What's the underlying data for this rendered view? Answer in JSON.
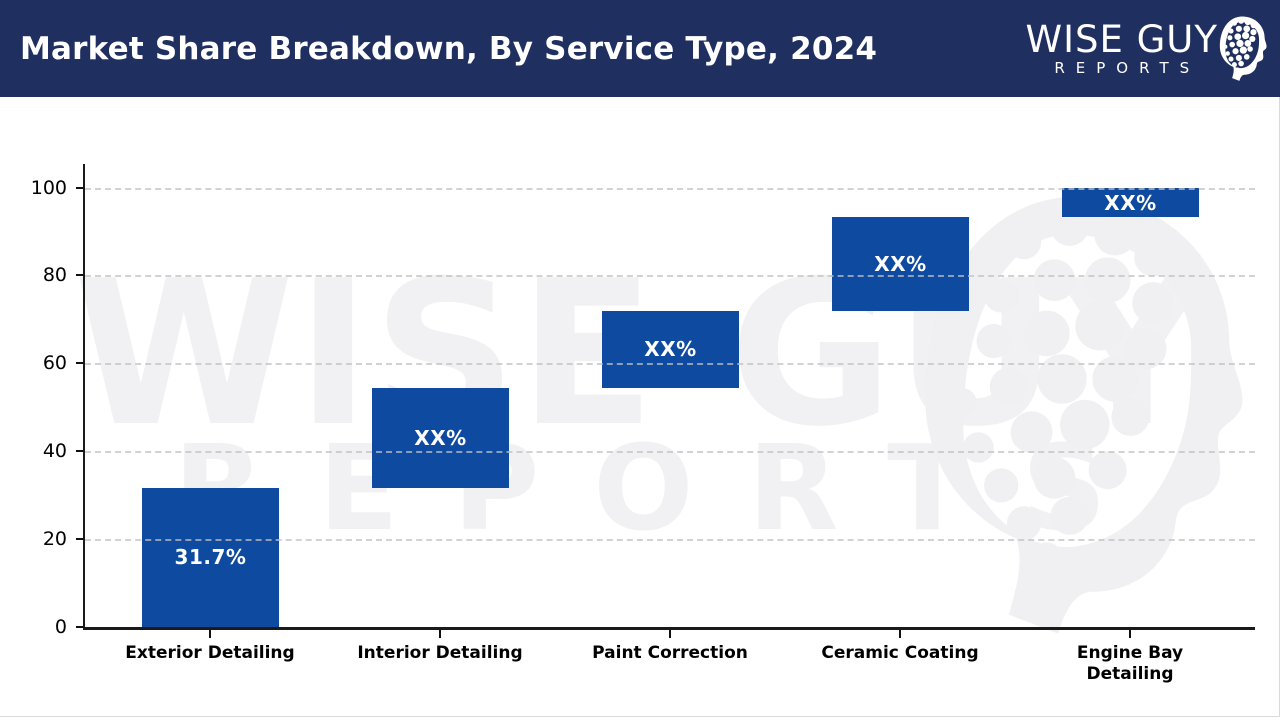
{
  "header": {
    "title": "Market Share Breakdown, By Service Type, 2024",
    "bg_color": "#1f2f5f",
    "logo": {
      "line1": "WISE GUY",
      "line2": "REPORTS"
    }
  },
  "watermark": {
    "line1": "WISE GUY",
    "line2": "REPORTS"
  },
  "chart_data": {
    "type": "bar",
    "subtype": "waterfall",
    "title": "Market Share Breakdown, By Service Type, 2024",
    "categories": [
      "Exterior Detailing",
      "Interior Detailing",
      "Paint Correction",
      "Ceramic Coating",
      "Engine Bay Detailing"
    ],
    "segments": [
      {
        "category": "Exterior Detailing",
        "label_lines": [
          "Exterior Detailing"
        ],
        "start": 0,
        "end": 31.7,
        "value_label": "31.7%"
      },
      {
        "category": "Interior Detailing",
        "label_lines": [
          "Interior Detailing"
        ],
        "start": 31.7,
        "end": 54.3,
        "value_label": "XX%"
      },
      {
        "category": "Paint Correction",
        "label_lines": [
          "Paint Correction"
        ],
        "start": 54.3,
        "end": 72,
        "value_label": "XX%"
      },
      {
        "category": "Ceramic Coating",
        "label_lines": [
          "Ceramic Coating"
        ],
        "start": 72,
        "end": 93.2,
        "value_label": "XX%"
      },
      {
        "category": "Engine Bay Detailing",
        "label_lines": [
          "Engine Bay",
          "Detailing"
        ],
        "start": 93.2,
        "end": 100,
        "value_label": "XX%"
      }
    ],
    "y_ticks": [
      0,
      20,
      40,
      60,
      80,
      100
    ],
    "ylim": [
      0,
      104
    ],
    "grid": "horizontal-dashed",
    "legend": "none",
    "bar_color": "#0d4aa0",
    "bar_label_color": "#ffffff",
    "axis_color": "#111111",
    "gridline_color": "#c1c1c1"
  }
}
